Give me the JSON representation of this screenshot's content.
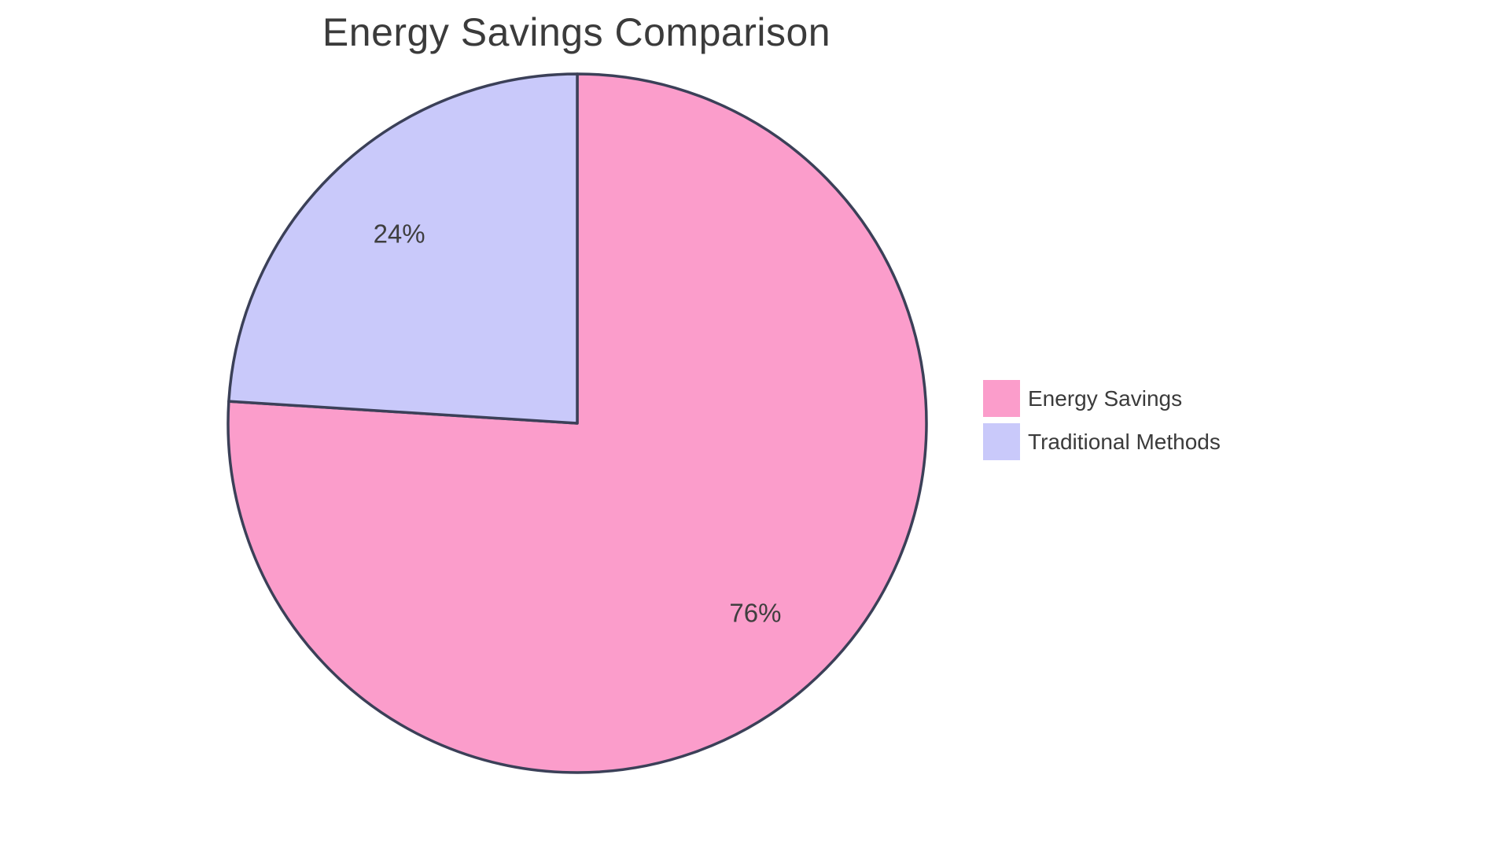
{
  "title": "Energy Savings Comparison",
  "chart_data": {
    "type": "pie",
    "title": "Energy Savings Comparison",
    "start_angle": "top",
    "direction": "clockwise",
    "legend_position": "right",
    "slices": [
      {
        "label": "Energy Savings",
        "value": 76,
        "percent_label": "76%",
        "color": "#FB9DCB"
      },
      {
        "label": "Traditional Methods",
        "value": 24,
        "percent_label": "24%",
        "color": "#C9C9FA"
      }
    ],
    "stroke_color": "#3B4058",
    "label_color": "#3F3F3F",
    "title_color": "#3B3B3B"
  },
  "legend": {
    "items": [
      {
        "label": "Energy Savings",
        "color": "#FB9DCB"
      },
      {
        "label": "Traditional Methods",
        "color": "#C9C9FA"
      }
    ]
  }
}
